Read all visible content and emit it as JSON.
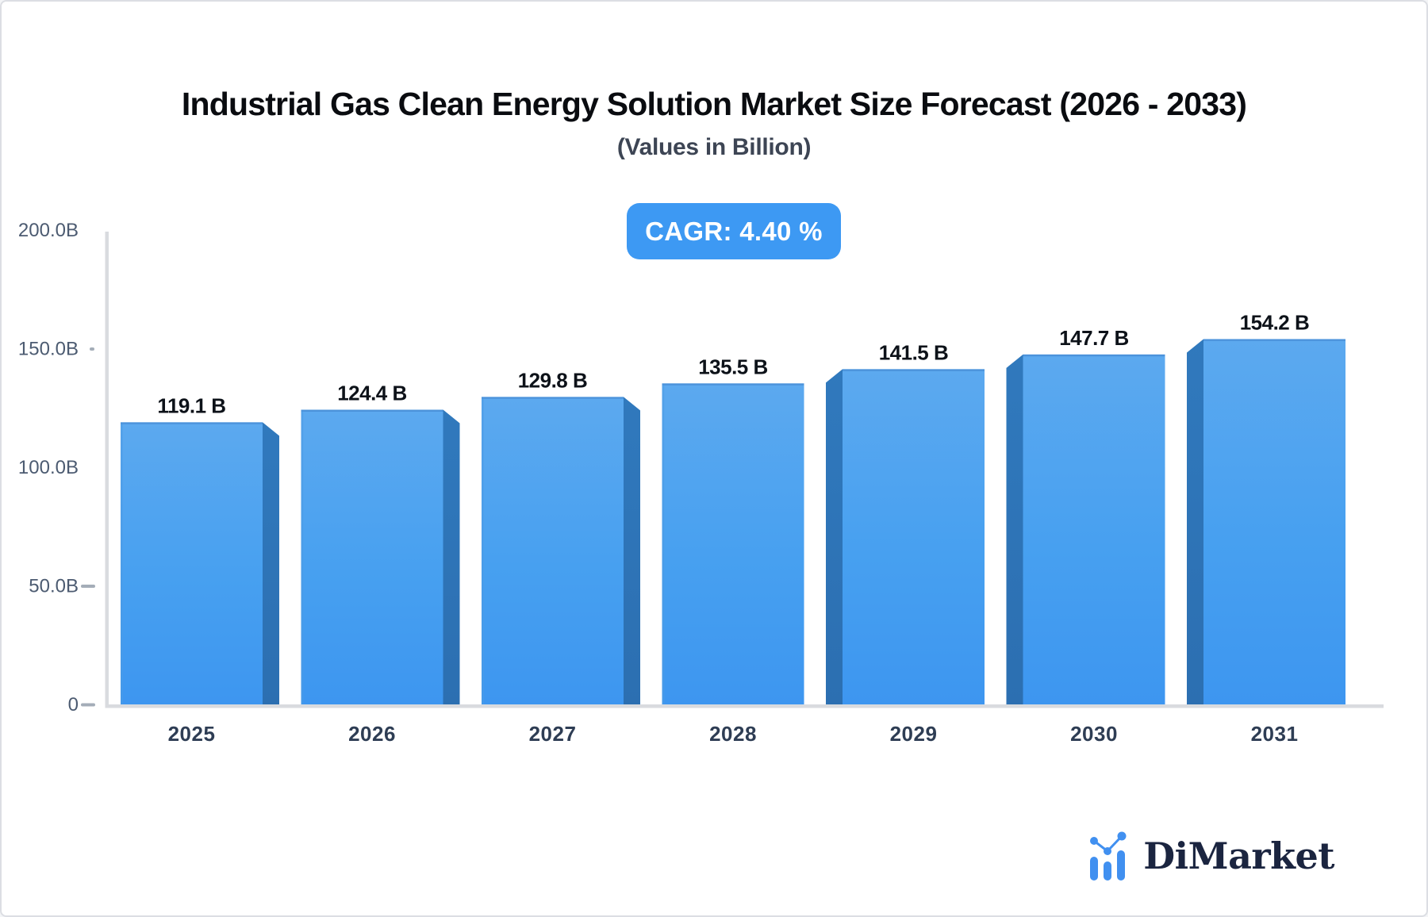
{
  "header": {
    "title": "Industrial Gas Clean Energy Solution Market Size Forecast (2026 - 2033)",
    "subtitle": "(Values in Billion)"
  },
  "badge": {
    "label": "CAGR: 4.40 %",
    "bg": "#3D99F3",
    "text_color": "#FFFFFF"
  },
  "chart_data": {
    "type": "bar",
    "title": "Industrial Gas Clean Energy Solution Market Size Forecast (2026 - 2033)",
    "subtitle": "(Values in Billion)",
    "unit": "Billion",
    "categories": [
      "2025",
      "2026",
      "2027",
      "2028",
      "2029",
      "2030",
      "2031"
    ],
    "values": [
      119.1,
      124.4,
      129.8,
      135.5,
      141.5,
      147.7,
      154.2
    ],
    "value_labels": [
      "119.1 B",
      "124.4 B",
      "129.8 B",
      "135.5 B",
      "141.5 B",
      "147.7 B",
      "154.2 B"
    ],
    "annotation": "CAGR: 4.40 %",
    "ylim": [
      0,
      200
    ],
    "y_ticks": [
      {
        "label": "200.0B",
        "value": 200
      },
      {
        "label": "150.0B",
        "value": 150
      },
      {
        "label": "100.0B",
        "value": 100
      },
      {
        "label": "50.0B",
        "value": 50
      },
      {
        "label": "0",
        "value": 0
      }
    ],
    "grid": false,
    "legend": false,
    "bar_3d": true
  },
  "colors": {
    "bar_face_top": "#5CA9EF",
    "bar_face_mid": "#47A0F0",
    "bar_face_bottom": "#3D96F0",
    "bar_side_top": "#3079BD",
    "bar_side_bottom": "#2C6FB1",
    "bar_top_edge": "#4A90D8",
    "bar_left_edge": "#4E9CE4",
    "axis": "#D9DBDF",
    "tick": "#A4ADB8",
    "y_label": "#4C5B71",
    "x_label": "#2E3D54",
    "value_label": "#0D1219"
  },
  "logo": {
    "icon": "bar-chart-icon",
    "icon_color": "#4190F0",
    "text": "DiMarket",
    "text_color": "#1B2540"
  }
}
